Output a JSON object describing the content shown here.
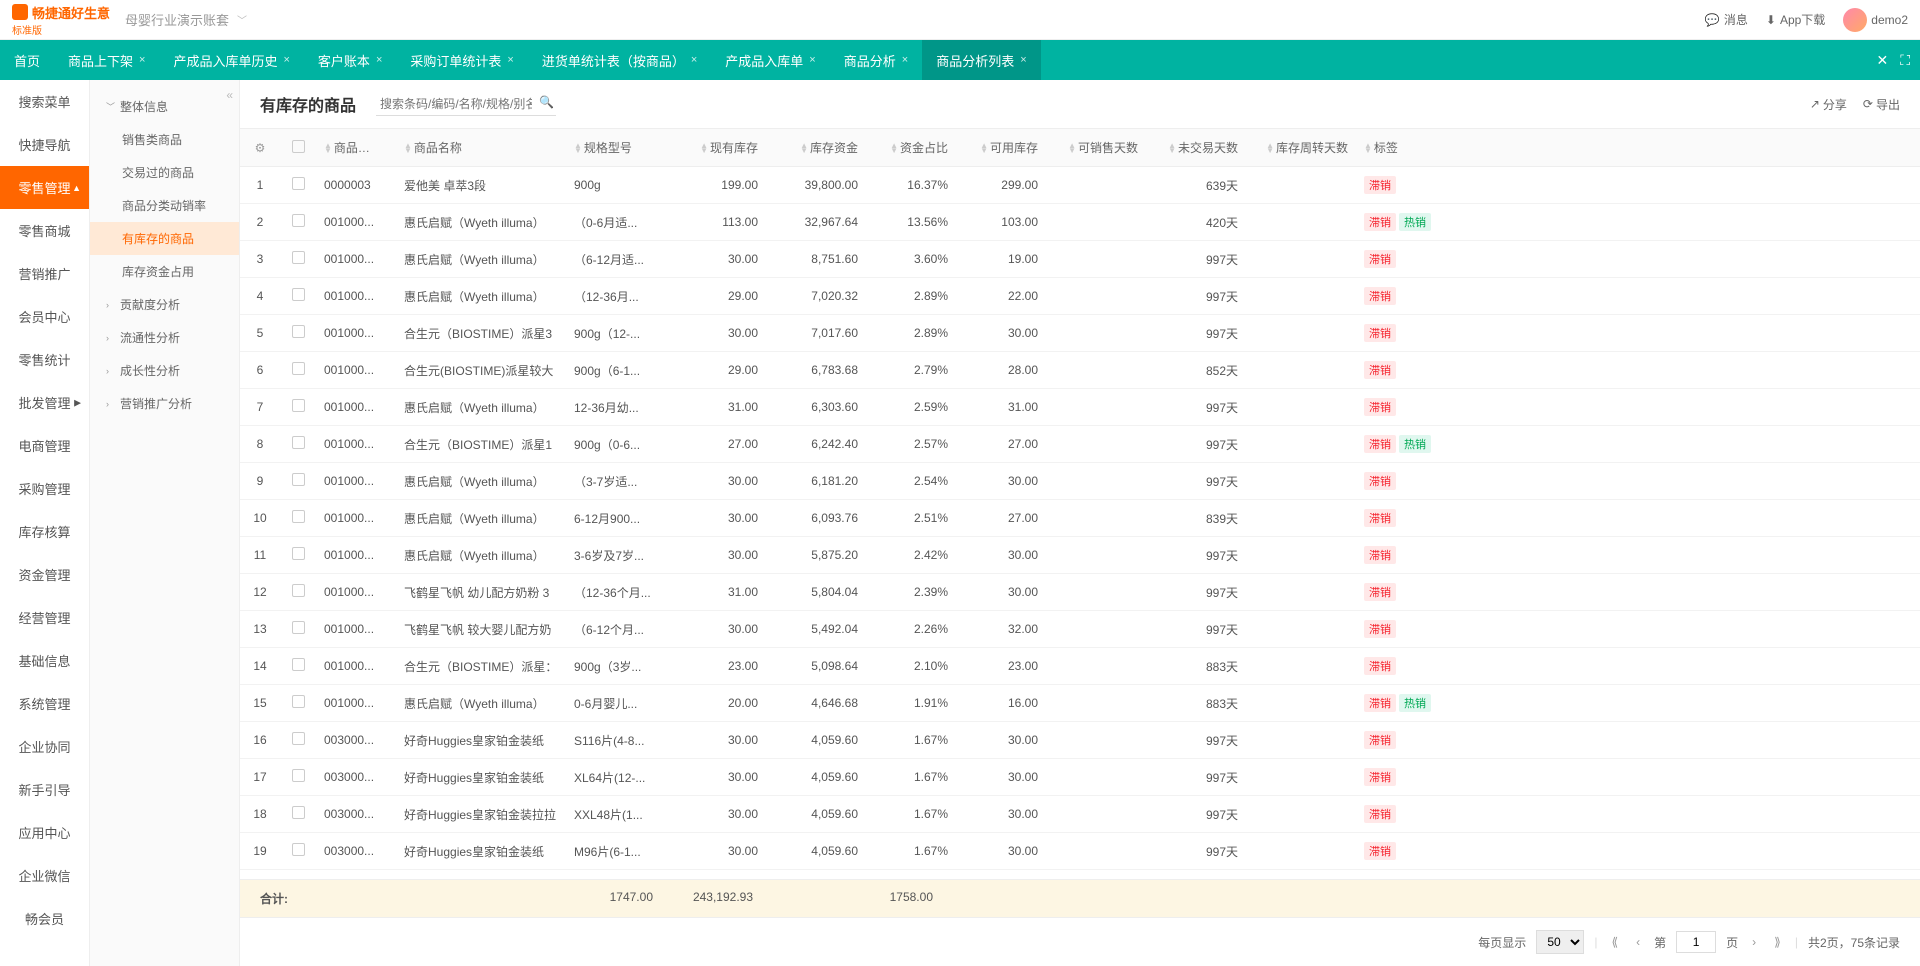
{
  "topbar": {
    "logo_text": "畅捷通好生意",
    "logo_sub": "标准版",
    "account": "母婴行业演示账套",
    "msg": "消息",
    "download": "App下载",
    "user": "demo2"
  },
  "tabs": [
    {
      "label": "首页",
      "closable": false
    },
    {
      "label": "商品上下架",
      "closable": true
    },
    {
      "label": "产成品入库单历史",
      "closable": true
    },
    {
      "label": "客户账本",
      "closable": true
    },
    {
      "label": "采购订单统计表",
      "closable": true
    },
    {
      "label": "进货单统计表（按商品）",
      "closable": true
    },
    {
      "label": "产成品入库单",
      "closable": true
    },
    {
      "label": "商品分析",
      "closable": true
    },
    {
      "label": "商品分析列表",
      "closable": true,
      "active": true
    }
  ],
  "leftnav": [
    {
      "label": "搜索菜单"
    },
    {
      "label": "快捷导航"
    },
    {
      "label": "零售管理",
      "active": true,
      "arrow": "▲"
    },
    {
      "label": "零售商城"
    },
    {
      "label": "营销推广"
    },
    {
      "label": "会员中心"
    },
    {
      "label": "零售统计"
    },
    {
      "label": "批发管理",
      "arrow": "▶"
    },
    {
      "label": "电商管理"
    },
    {
      "label": "采购管理"
    },
    {
      "label": "库存核算"
    },
    {
      "label": "资金管理"
    },
    {
      "label": "经营管理"
    },
    {
      "label": "基础信息"
    },
    {
      "label": "系统管理"
    },
    {
      "label": "企业协同"
    },
    {
      "label": "新手引导"
    },
    {
      "label": "应用中心"
    },
    {
      "label": "企业微信"
    },
    {
      "label": "畅会员"
    }
  ],
  "subnav": {
    "groups": [
      {
        "label": "整体信息",
        "open": true,
        "items": [
          {
            "label": "销售类商品"
          },
          {
            "label": "交易过的商品"
          },
          {
            "label": "商品分类动销率"
          },
          {
            "label": "有库存的商品",
            "active": true
          },
          {
            "label": "库存资金占用"
          }
        ]
      },
      {
        "label": "贡献度分析",
        "open": false
      },
      {
        "label": "流通性分析",
        "open": false
      },
      {
        "label": "成长性分析",
        "open": false
      },
      {
        "label": "营销推广分析",
        "open": false
      }
    ]
  },
  "page": {
    "title": "有库存的商品",
    "search_placeholder": "搜索条码/编码/名称/规格/别名",
    "share": "分享",
    "export": "导出"
  },
  "columns": [
    "",
    "",
    "商品…",
    "商品名称",
    "规格型号",
    "现有库存",
    "库存资金",
    "资金占比",
    "可用库存",
    "可销售天数",
    "未交易天数",
    "库存周转天数",
    "标签"
  ],
  "rows": [
    {
      "idx": 1,
      "code": "0000003",
      "name": "爱他美 卓萃3段",
      "spec": "900g",
      "stock": "199.00",
      "fund": "39,800.00",
      "ratio": "16.37%",
      "avail": "299.00",
      "sale": "",
      "noTrade": "639天",
      "turn": "",
      "tags": [
        "滞销"
      ]
    },
    {
      "idx": 2,
      "code": "001000...",
      "name": "惠氏启赋（Wyeth illuma）",
      "spec": "（0-6月适...",
      "stock": "113.00",
      "fund": "32,967.64",
      "ratio": "13.56%",
      "avail": "103.00",
      "sale": "",
      "noTrade": "420天",
      "turn": "",
      "tags": [
        "滞销",
        "热销"
      ]
    },
    {
      "idx": 3,
      "code": "001000...",
      "name": "惠氏启赋（Wyeth illuma）",
      "spec": "（6-12月适...",
      "stock": "30.00",
      "fund": "8,751.60",
      "ratio": "3.60%",
      "avail": "19.00",
      "sale": "",
      "noTrade": "997天",
      "turn": "",
      "tags": [
        "滞销"
      ]
    },
    {
      "idx": 4,
      "code": "001000...",
      "name": "惠氏启赋（Wyeth illuma）",
      "spec": "（12-36月...",
      "stock": "29.00",
      "fund": "7,020.32",
      "ratio": "2.89%",
      "avail": "22.00",
      "sale": "",
      "noTrade": "997天",
      "turn": "",
      "tags": [
        "滞销"
      ]
    },
    {
      "idx": 5,
      "code": "001000...",
      "name": "合生元（BIOSTIME）派星3",
      "spec": "900g（12-...",
      "stock": "30.00",
      "fund": "7,017.60",
      "ratio": "2.89%",
      "avail": "30.00",
      "sale": "",
      "noTrade": "997天",
      "turn": "",
      "tags": [
        "滞销"
      ]
    },
    {
      "idx": 6,
      "code": "001000...",
      "name": "合生元(BIOSTIME)派星较大",
      "spec": "900g（6-1...",
      "stock": "29.00",
      "fund": "6,783.68",
      "ratio": "2.79%",
      "avail": "28.00",
      "sale": "",
      "noTrade": "852天",
      "turn": "",
      "tags": [
        "滞销"
      ]
    },
    {
      "idx": 7,
      "code": "001000...",
      "name": "惠氏启赋（Wyeth illuma）",
      "spec": "12-36月幼...",
      "stock": "31.00",
      "fund": "6,303.60",
      "ratio": "2.59%",
      "avail": "31.00",
      "sale": "",
      "noTrade": "997天",
      "turn": "",
      "tags": [
        "滞销"
      ]
    },
    {
      "idx": 8,
      "code": "001000...",
      "name": "合生元（BIOSTIME）派星1",
      "spec": "900g（0-6...",
      "stock": "27.00",
      "fund": "6,242.40",
      "ratio": "2.57%",
      "avail": "27.00",
      "sale": "",
      "noTrade": "997天",
      "turn": "",
      "tags": [
        "滞销",
        "热销"
      ]
    },
    {
      "idx": 9,
      "code": "001000...",
      "name": "惠氏启赋（Wyeth illuma）",
      "spec": "（3-7岁适...",
      "stock": "30.00",
      "fund": "6,181.20",
      "ratio": "2.54%",
      "avail": "30.00",
      "sale": "",
      "noTrade": "997天",
      "turn": "",
      "tags": [
        "滞销"
      ]
    },
    {
      "idx": 10,
      "code": "001000...",
      "name": "惠氏启赋（Wyeth illuma）",
      "spec": "6-12月900...",
      "stock": "30.00",
      "fund": "6,093.76",
      "ratio": "2.51%",
      "avail": "27.00",
      "sale": "",
      "noTrade": "839天",
      "turn": "",
      "tags": [
        "滞销"
      ]
    },
    {
      "idx": 11,
      "code": "001000...",
      "name": "惠氏启赋（Wyeth illuma）",
      "spec": "3-6岁及7岁...",
      "stock": "30.00",
      "fund": "5,875.20",
      "ratio": "2.42%",
      "avail": "30.00",
      "sale": "",
      "noTrade": "997天",
      "turn": "",
      "tags": [
        "滞销"
      ]
    },
    {
      "idx": 12,
      "code": "001000...",
      "name": "飞鹤星飞帆 幼儿配方奶粉 3",
      "spec": "（12-36个月...",
      "stock": "31.00",
      "fund": "5,804.04",
      "ratio": "2.39%",
      "avail": "30.00",
      "sale": "",
      "noTrade": "997天",
      "turn": "",
      "tags": [
        "滞销"
      ]
    },
    {
      "idx": 13,
      "code": "001000...",
      "name": "飞鹤星飞帆 较大婴儿配方奶",
      "spec": "（6-12个月...",
      "stock": "30.00",
      "fund": "5,492.04",
      "ratio": "2.26%",
      "avail": "32.00",
      "sale": "",
      "noTrade": "997天",
      "turn": "",
      "tags": [
        "滞销"
      ]
    },
    {
      "idx": 14,
      "code": "001000...",
      "name": "合生元（BIOSTIME）派星：",
      "spec": "900g（3岁...",
      "stock": "23.00",
      "fund": "5,098.64",
      "ratio": "2.10%",
      "avail": "23.00",
      "sale": "",
      "noTrade": "883天",
      "turn": "",
      "tags": [
        "滞销"
      ]
    },
    {
      "idx": 15,
      "code": "001000...",
      "name": "惠氏启赋（Wyeth illuma）",
      "spec": "0-6月婴儿...",
      "stock": "20.00",
      "fund": "4,646.68",
      "ratio": "1.91%",
      "avail": "16.00",
      "sale": "",
      "noTrade": "883天",
      "turn": "",
      "tags": [
        "滞销",
        "热销"
      ]
    },
    {
      "idx": 16,
      "code": "003000...",
      "name": "好奇Huggies皇家铂金装纸",
      "spec": "S116片(4-8...",
      "stock": "30.00",
      "fund": "4,059.60",
      "ratio": "1.67%",
      "avail": "30.00",
      "sale": "",
      "noTrade": "997天",
      "turn": "",
      "tags": [
        "滞销"
      ]
    },
    {
      "idx": 17,
      "code": "003000...",
      "name": "好奇Huggies皇家铂金装纸",
      "spec": "XL64片(12-...",
      "stock": "30.00",
      "fund": "4,059.60",
      "ratio": "1.67%",
      "avail": "30.00",
      "sale": "",
      "noTrade": "997天",
      "turn": "",
      "tags": [
        "滞销"
      ]
    },
    {
      "idx": 18,
      "code": "003000...",
      "name": "好奇Huggies皇家铂金装拉拉",
      "spec": "XXL48片(1...",
      "stock": "30.00",
      "fund": "4,059.60",
      "ratio": "1.67%",
      "avail": "30.00",
      "sale": "",
      "noTrade": "997天",
      "turn": "",
      "tags": [
        "滞销"
      ]
    },
    {
      "idx": 19,
      "code": "003000...",
      "name": "好奇Huggies皇家铂金装纸",
      "spec": "M96片(6-1...",
      "stock": "30.00",
      "fund": "4,059.60",
      "ratio": "1.67%",
      "avail": "30.00",
      "sale": "",
      "noTrade": "997天",
      "turn": "",
      "tags": [
        "滞销"
      ]
    }
  ],
  "totals": {
    "label": "合计:",
    "stock": "1747.00",
    "fund": "243,192.93",
    "avail": "1758.00"
  },
  "pager": {
    "perpage_label": "每页显示",
    "perpage": "50",
    "page_label_pre": "第",
    "page": "1",
    "page_label_post": "页",
    "summary": "共2页，75条记录"
  }
}
